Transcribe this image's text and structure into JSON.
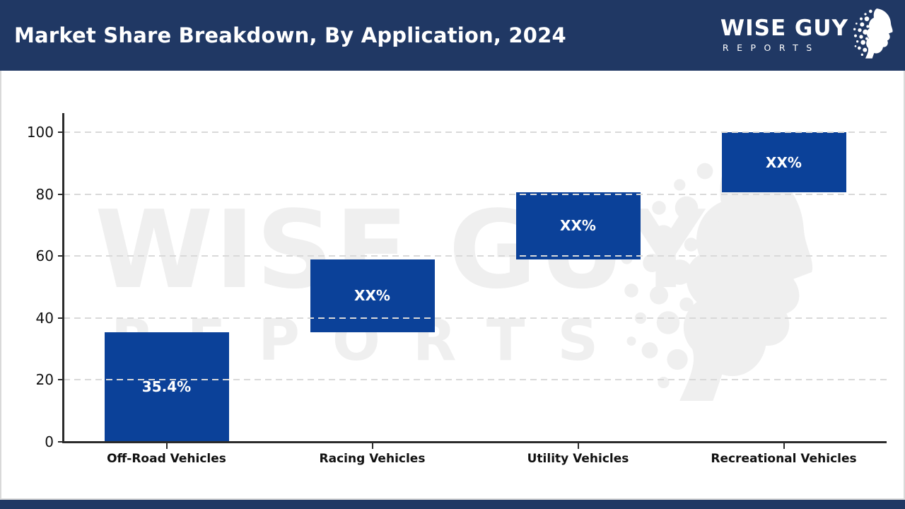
{
  "header": {
    "title": "Market Share Breakdown, By Application, 2024",
    "bg_color": "#203864",
    "logo": {
      "primary": "WISE GUY",
      "secondary": "REPORTS"
    }
  },
  "watermark": {
    "line1": "WISE GUY",
    "line2": "REPORTS"
  },
  "chart_data": {
    "type": "bar",
    "subtype": "waterfall",
    "title": "Market Share Breakdown, By Application, 2024",
    "categories": [
      "Off-Road Vehicles",
      "Racing Vehicles",
      "Utility Vehicles",
      "Recreational Vehicles"
    ],
    "segments": [
      {
        "category": "Off-Road Vehicles",
        "start": 0,
        "end": 35.4,
        "label": "35.4%"
      },
      {
        "category": "Racing Vehicles",
        "start": 35.4,
        "end": 59.0,
        "label": "XX%"
      },
      {
        "category": "Utility Vehicles",
        "start": 59.0,
        "end": 80.5,
        "label": "XX%"
      },
      {
        "category": "Recreational Vehicles",
        "start": 80.5,
        "end": 100.0,
        "label": "XX%"
      }
    ],
    "ylim": [
      0,
      100
    ],
    "yticks": [
      0,
      20,
      40,
      60,
      80,
      100
    ],
    "xlabel": "",
    "ylabel": "",
    "grid": {
      "axis": "y",
      "style": "dashed",
      "color": "#d9d9d9",
      "above_bars": true
    },
    "legend": null,
    "bar_color": "#0b4199",
    "bar_label_color": "#ffffff"
  },
  "footer": {
    "bg_color": "#203864"
  }
}
